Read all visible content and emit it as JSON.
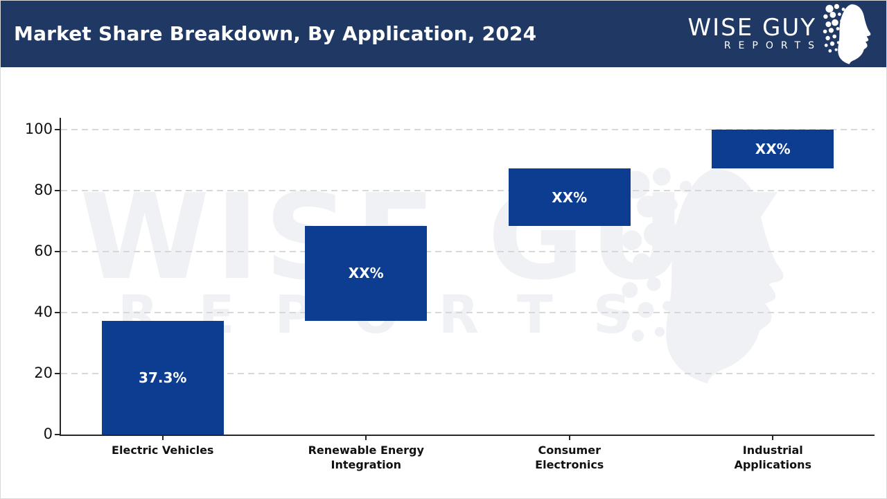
{
  "header": {
    "title": "Market Share Breakdown, By Application, 2024",
    "brand": {
      "line1": "WISE GUY",
      "line2": "REPORTS"
    },
    "background_color": "#1f3864"
  },
  "watermark": {
    "line1": "WISE GUY",
    "line2": "REPORTS",
    "color": "#f0f1f4"
  },
  "chart_data": {
    "type": "bar",
    "subtype": "floating-segment (waterfall style market share progression)",
    "title": "Market Share Breakdown, By Application, 2024",
    "categories": [
      "Electric Vehicles",
      "Renewable Energy Integration",
      "Consumer Electronics",
      "Industrial Applications"
    ],
    "category_display": [
      "Electric Vehicles",
      "Renewable Energy\nIntegration",
      "Consumer\nElectronics",
      "Industrial\nApplications"
    ],
    "bars": [
      {
        "category": "Electric Vehicles",
        "start": 0,
        "end": 37.3,
        "label": "37.3%"
      },
      {
        "category": "Renewable Energy Integration",
        "start": 37.3,
        "end": 68.4,
        "label": "XX%"
      },
      {
        "category": "Consumer Electronics",
        "start": 68.4,
        "end": 87.2,
        "label": "XX%"
      },
      {
        "category": "Industrial Applications",
        "start": 87.2,
        "end": 100.0,
        "label": "XX%"
      }
    ],
    "ylim": [
      0,
      100
    ],
    "yticks": [
      0,
      20,
      40,
      60,
      80,
      100
    ],
    "xlabel": "",
    "ylabel": "",
    "grid": "horizontal dashed",
    "grid_color": "#d8d8d8",
    "legend": false,
    "bar_color": "#0c3d91",
    "bar_label_color": "#ffffff",
    "axis_color": "#262626"
  }
}
